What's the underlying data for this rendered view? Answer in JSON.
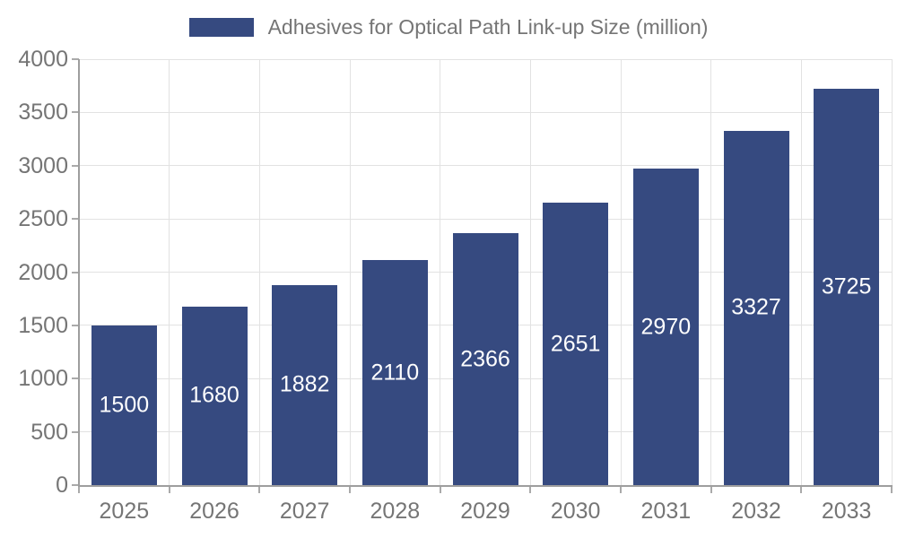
{
  "chart_data": {
    "type": "bar",
    "title": "Adhesives for Optical Path Link-up Size (million)",
    "legend_position": "top-center",
    "categories": [
      "2025",
      "2026",
      "2027",
      "2028",
      "2029",
      "2030",
      "2031",
      "2032",
      "2033"
    ],
    "series": [
      {
        "name": "Adhesives for Optical Path Link-up Size (million)",
        "values": [
          1500,
          1680,
          1882,
          2110,
          2366,
          2651,
          2970,
          3327,
          3725
        ],
        "color": "#364A80"
      }
    ],
    "value_labels": {
      "visible": true,
      "position": "inside-center",
      "color": "#FFFFFF"
    },
    "xlabel": "",
    "ylabel": "",
    "ylim": [
      0,
      4000
    ],
    "yticks": [
      0,
      500,
      1000,
      1500,
      2000,
      2500,
      3000,
      3500,
      4000
    ],
    "grid": true,
    "styles": {
      "background": "#FFFFFF",
      "axis_text_color": "#757575",
      "grid_color": "#E2E2E2",
      "spine_color": "#9E9E9E",
      "tick_color": "#AAAAAA"
    }
  }
}
